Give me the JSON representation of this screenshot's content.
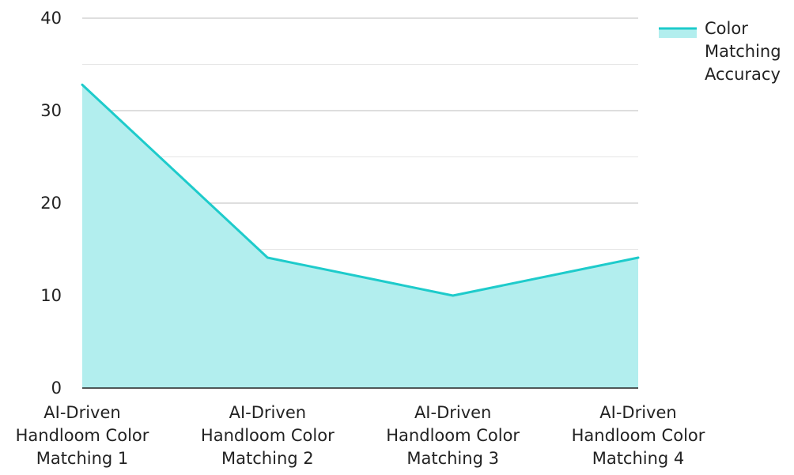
{
  "chart_data": {
    "type": "area",
    "title": "",
    "xlabel": "",
    "ylabel": "",
    "categories": [
      [
        "AI-Driven",
        "Handloom Color",
        "Matching 1"
      ],
      [
        "AI-Driven",
        "Handloom Color",
        "Matching 2"
      ],
      [
        "AI-Driven",
        "Handloom Color",
        "Matching 3"
      ],
      [
        "AI-Driven",
        "Handloom Color",
        "Matching 4"
      ]
    ],
    "series": [
      {
        "name_lines": [
          "Color",
          "Matching",
          "Accuracy"
        ],
        "values": [
          32.8,
          14.1,
          10,
          14.1
        ],
        "line_color": "#1ECBCB",
        "fill_color": "#B2EEEE"
      }
    ],
    "ylim": [
      0,
      40
    ],
    "yticks": [
      0,
      10,
      20,
      30,
      40
    ],
    "minor_gridlines": [
      5,
      15,
      25,
      35
    ],
    "grid": true,
    "legend_position": "top-right",
    "colors": {
      "major_grid": "#BDBDBD",
      "minor_grid": "#E6E6E6",
      "axis": "#222222"
    }
  }
}
